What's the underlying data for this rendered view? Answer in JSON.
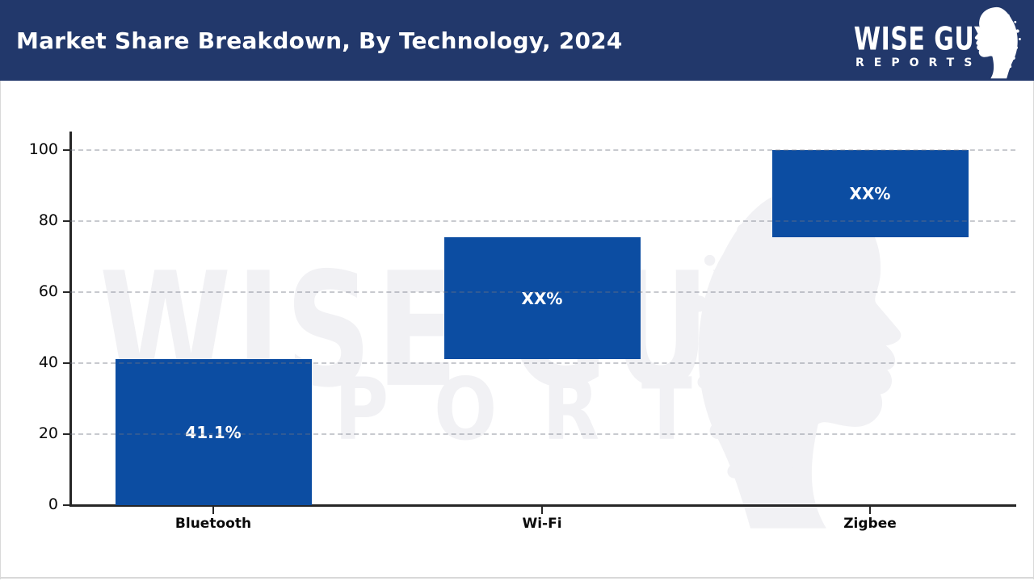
{
  "header": {
    "title": "Market Share Breakdown, By Technology, 2024",
    "logo": {
      "line1": "WISE GUY",
      "line2": "REPORTS"
    }
  },
  "watermark": {
    "line1": "WISE GUY",
    "line2": "REPORTS"
  },
  "colors": {
    "header_bg": "#22386b",
    "bar": "#0c4da2",
    "axis": "#262626",
    "gridline": "#d2d4da",
    "watermark": "#f1f1f4",
    "bar_label": "#ffffff"
  },
  "chart_data": {
    "type": "bar",
    "variant": "waterfall",
    "title": "Market Share Breakdown, By Technology, 2024",
    "categories": [
      "Bluetooth",
      "Wi-Fi",
      "Zigbee"
    ],
    "segments": [
      {
        "category": "Bluetooth",
        "start": 0,
        "end": 41.1,
        "label": "41.1%"
      },
      {
        "category": "Wi-Fi",
        "start": 41.1,
        "end": 75.4,
        "label": "XX%"
      },
      {
        "category": "Zigbee",
        "start": 75.4,
        "end": 100,
        "label": "XX%"
      }
    ],
    "yticks": [
      0,
      20,
      40,
      60,
      80,
      100
    ],
    "ylim": [
      0,
      105
    ],
    "xlabel": "",
    "ylabel": "",
    "grid": "horizontal-dashed",
    "legend": "none"
  }
}
